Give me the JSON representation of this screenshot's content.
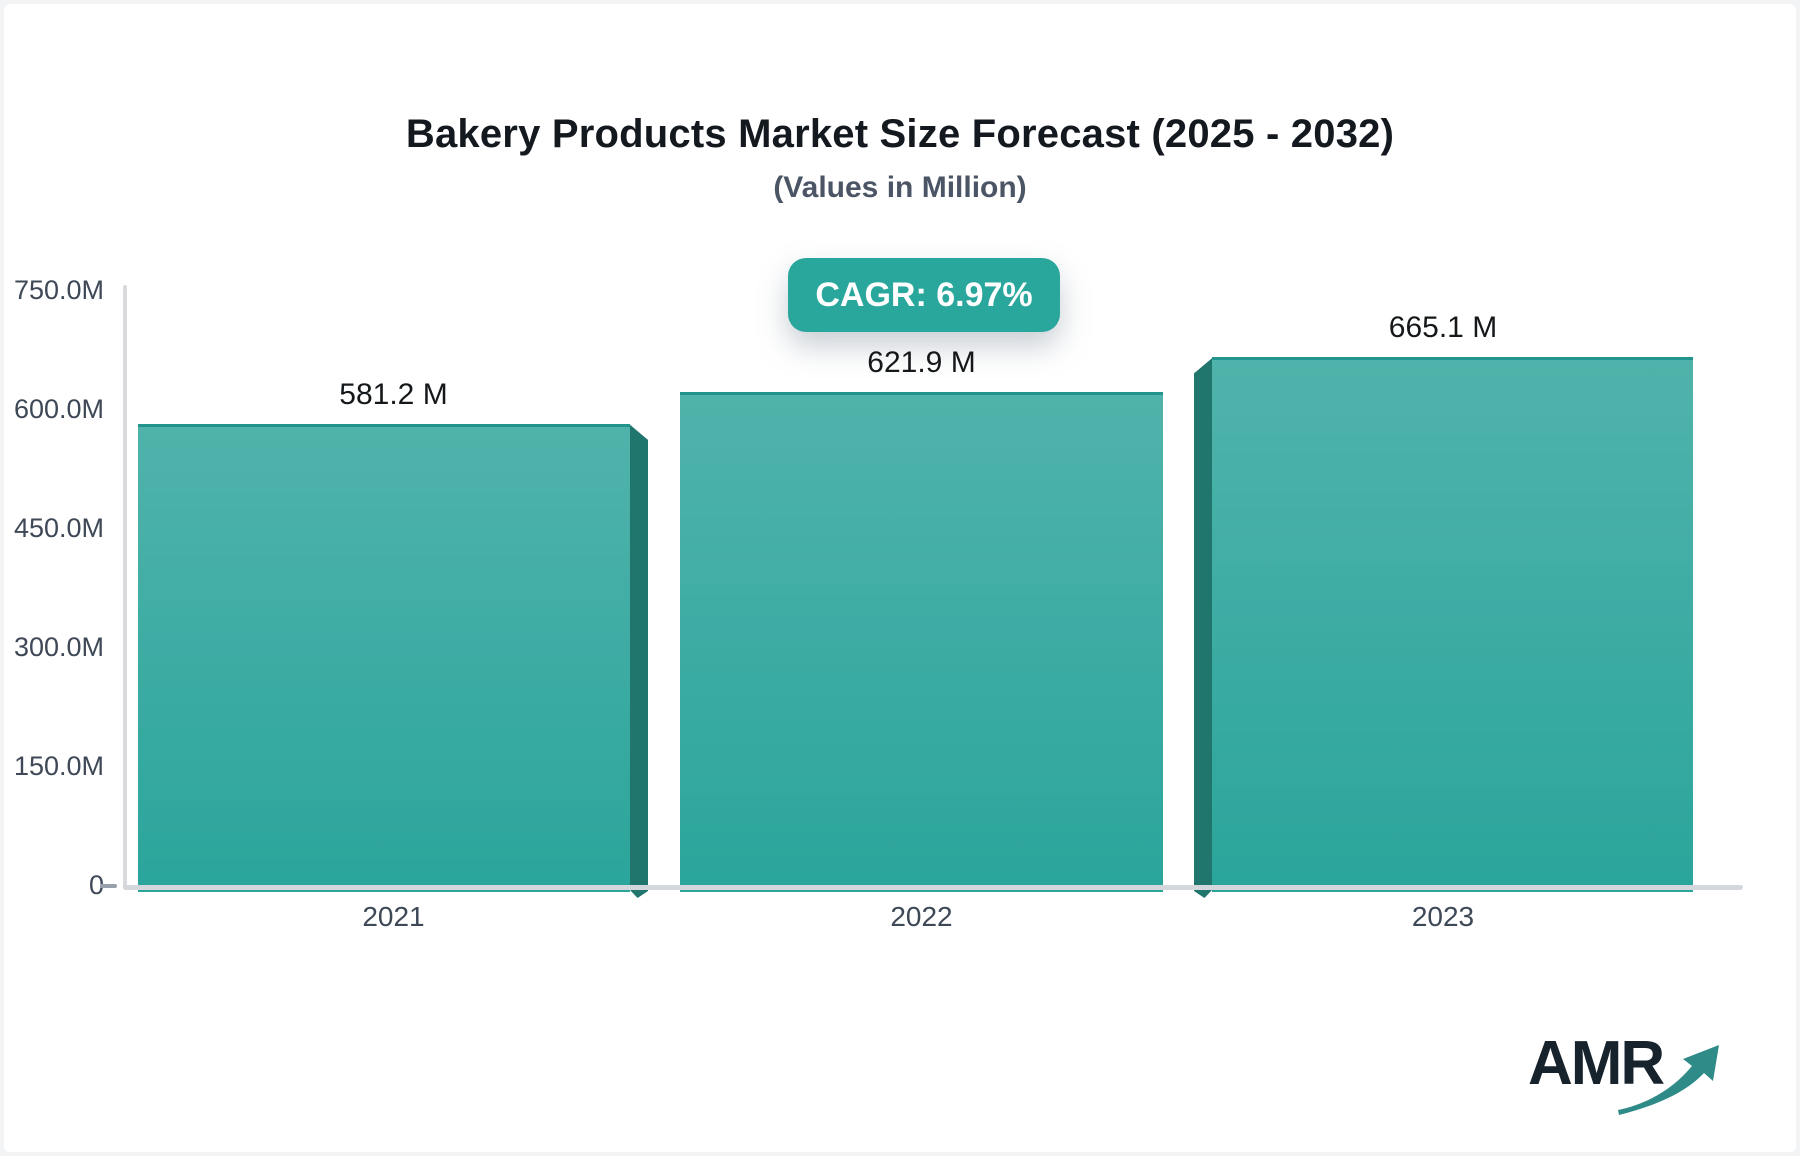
{
  "header": {
    "title": "Bakery Products Market Size Forecast (2025 - 2032)",
    "subtitle": "(Values in Million)"
  },
  "badge": {
    "label": "CAGR: 6.97%",
    "background": "#2aa79d",
    "text_color": "#ffffff"
  },
  "chart_data": {
    "type": "bar",
    "title": "Bakery Products Market Size Forecast (2025 - 2032)",
    "subtitle": "(Values in Million)",
    "unit": "Million",
    "cagr_label": "CAGR: 6.97%",
    "categories": [
      "2021",
      "2022",
      "2023"
    ],
    "values": [
      581.2,
      621.9,
      665.1
    ],
    "value_labels": [
      "581.2 M",
      "621.9 M",
      "665.1 M"
    ],
    "ylim": [
      0,
      750
    ],
    "yticks": [
      {
        "value": 750,
        "label": "750.0M"
      },
      {
        "value": 600,
        "label": "600.0M"
      },
      {
        "value": 450,
        "label": "450.0M"
      },
      {
        "value": 300,
        "label": "300.0M"
      },
      {
        "value": 150,
        "label": "150.0M"
      },
      {
        "value": 0,
        "label": "0"
      }
    ],
    "grid": false,
    "legend": "none",
    "bar_color_top": "#50b3ab",
    "bar_color_bottom": "#2aa59b",
    "bar_side_color": "#20756d",
    "bar_top_edge_color": "#23948b"
  },
  "logo": {
    "text": "AMR",
    "text_color": "#16222c",
    "arrow_color": "#2f8b87"
  }
}
